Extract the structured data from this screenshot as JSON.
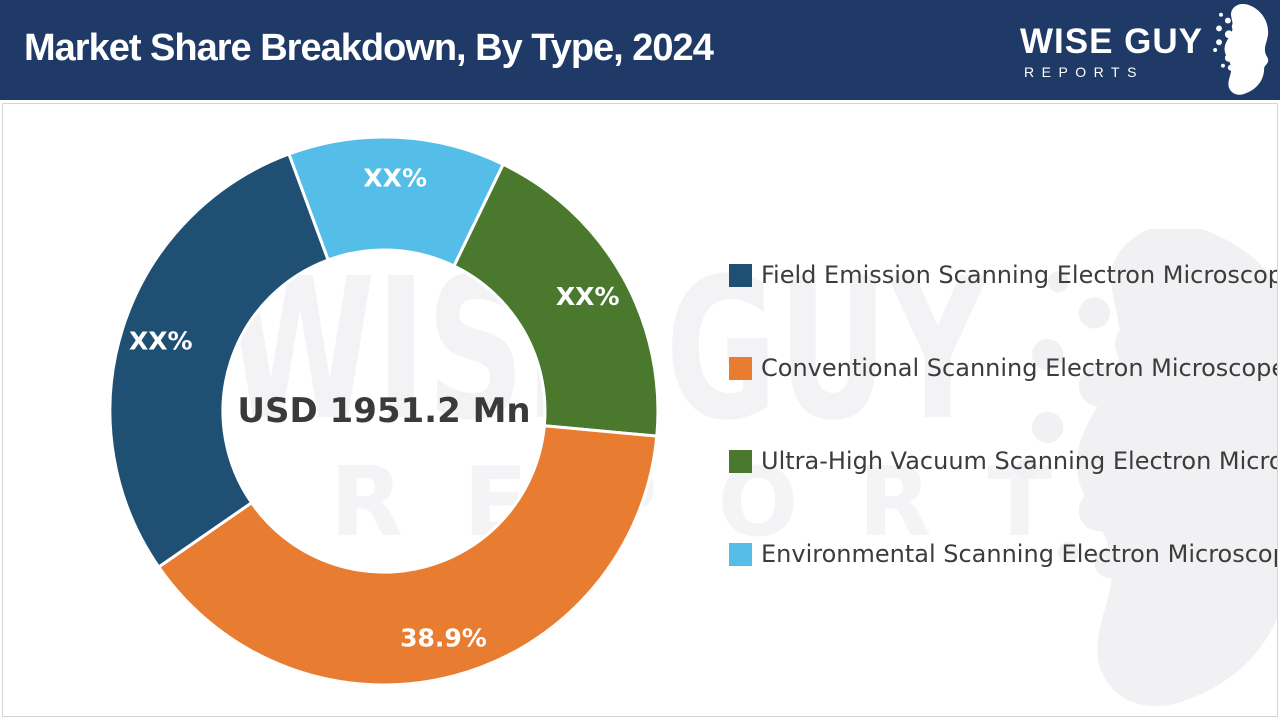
{
  "header": {
    "title": "Market Share Breakdown, By Type, 2024",
    "logo": {
      "line1": "WISE GUY",
      "line2": "REPORTS"
    }
  },
  "watermark": {
    "line1": "WISE GUY",
    "line2": "REPORTS"
  },
  "chart_data": {
    "type": "donut",
    "title": "Market Share Breakdown, By Type, 2024",
    "center_label": "USD 1951.2 Mn",
    "start_angle_deg": -20.3,
    "units": "percent of market share",
    "segments": [
      {
        "label": "Environmental Scanning Electron Microscope",
        "value": 12.8,
        "display": "XX%",
        "color": "#55BEE8"
      },
      {
        "label": "Ultra-High Vacuum Scanning Electron Microscope",
        "value": 19.3,
        "display": "XX%",
        "color": "#4A782D"
      },
      {
        "label": "Conventional Scanning Electron Microscope",
        "value": 38.9,
        "display": "38.9%",
        "color": "#E87D32"
      },
      {
        "label": "Field Emission Scanning Electron Microscope",
        "value": 29.0,
        "display": "XX%",
        "color": "#204F74"
      }
    ],
    "legend_position": "right"
  },
  "legend": {
    "items": [
      {
        "label": "Field Emission Scanning Electron Microscope",
        "color": "#204F74"
      },
      {
        "label": "Conventional Scanning Electron Microscope",
        "color": "#E87D32"
      },
      {
        "label": "Ultra-High Vacuum Scanning Electron Microscope",
        "color": "#4A782D"
      },
      {
        "label": "Environmental Scanning Electron Microscope",
        "color": "#55BEE8"
      }
    ]
  }
}
